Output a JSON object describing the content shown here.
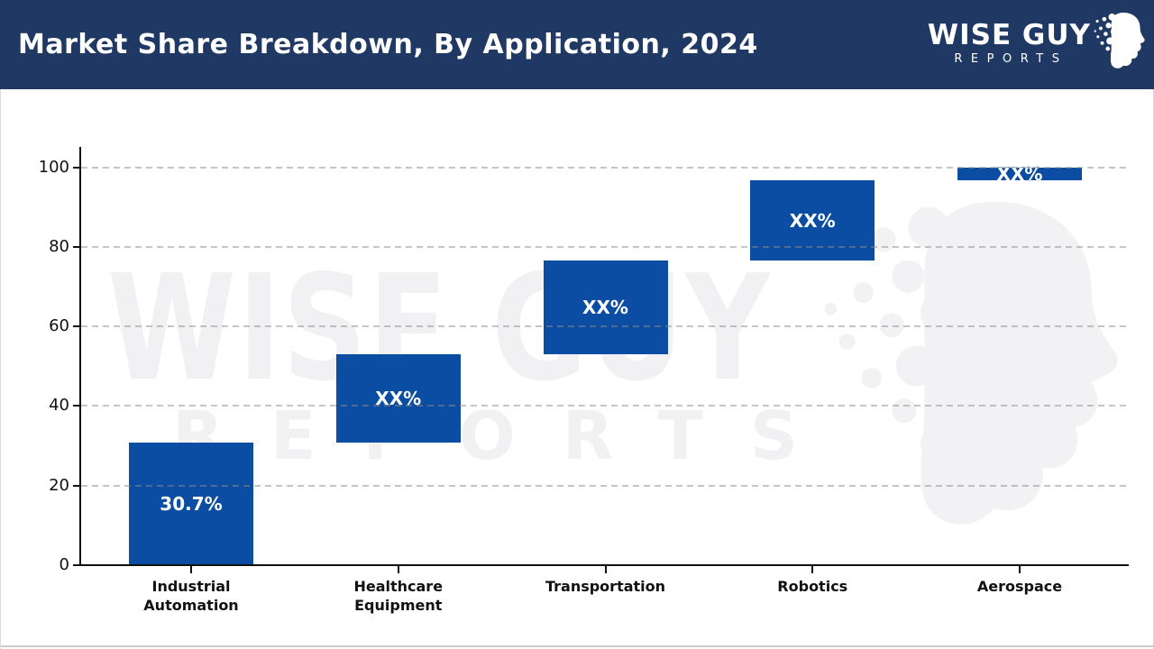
{
  "header": {
    "title": "Market Share Breakdown, By Application, 2024"
  },
  "logo": {
    "line1": "WISE GUY",
    "line2": "REPORTS"
  },
  "watermark": {
    "line1": "WISE GUY",
    "line2": "REPORTS"
  },
  "colors": {
    "header_bg": "#1F3864",
    "bar": "#0B4DA2",
    "bar_label": "#ffffff",
    "overflow_label": "#1c2b4a",
    "axis": "#111111",
    "grid": "#cfcfcf"
  },
  "chart_data": {
    "type": "bar",
    "subtype": "waterfall",
    "title": "Market Share Breakdown, By Application, 2024",
    "categories": [
      "Industrial Automation",
      "Healthcare Equipment",
      "Transportation",
      "Robotics",
      "Aerospace"
    ],
    "category_display": [
      "Industrial\nAutomation",
      "Healthcare\nEquipment",
      "Transportation",
      "Robotics",
      "Aerospace"
    ],
    "segments": [
      {
        "category": "Industrial Automation",
        "start": 0,
        "end": 30.7,
        "label": "30.7%"
      },
      {
        "category": "Healthcare Equipment",
        "start": 30.7,
        "end": 53.0,
        "label": "XX%"
      },
      {
        "category": "Transportation",
        "start": 53.0,
        "end": 76.5,
        "label": "XX%"
      },
      {
        "category": "Robotics",
        "start": 76.5,
        "end": 96.7,
        "label": "XX%"
      },
      {
        "category": "Aerospace",
        "start": 96.7,
        "end": 100.0,
        "label": "XX%"
      }
    ],
    "xlabel": "",
    "ylabel": "",
    "yticks": [
      0,
      20,
      40,
      60,
      80,
      100
    ],
    "ylim": [
      0,
      105
    ],
    "grid": "horizontal dashed, drawn over bars",
    "legend": "none",
    "bar_color": "#0B4DA2",
    "value_label_color": "#ffffff"
  }
}
